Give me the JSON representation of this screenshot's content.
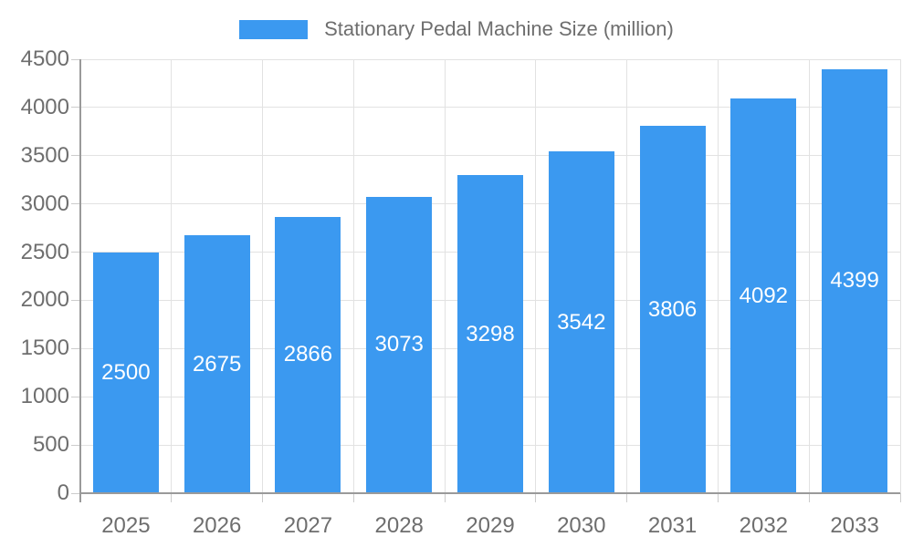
{
  "chart_data": {
    "type": "bar",
    "title": "Stationary Pedal Machine Size (million)",
    "legend": {
      "label": "Stationary Pedal Machine Size (million)",
      "position": "top"
    },
    "categories": [
      "2025",
      "2026",
      "2027",
      "2028",
      "2029",
      "2030",
      "2031",
      "2032",
      "2033"
    ],
    "series": [
      {
        "name": "Stationary Pedal Machine Size (million)",
        "values": [
          2500,
          2675,
          2866,
          3073,
          3298,
          3542,
          3806,
          4092,
          4399
        ]
      }
    ],
    "xlabel": "",
    "ylabel": "",
    "ylim": [
      0,
      4500
    ],
    "ytick_step": 500,
    "yticks": [
      0,
      500,
      1000,
      1500,
      2000,
      2500,
      3000,
      3500,
      4000,
      4500
    ],
    "grid": true,
    "bar_labels_inside": true
  },
  "colors": {
    "bar": "#3B99F0",
    "bar_value_text": "#ffffff",
    "axis_line": "#9a9a9a",
    "gridline": "#e2e2e2",
    "tick_mark": "#cccccc",
    "tick_text": "#6e6e6e",
    "legend_text": "#6e6e6e",
    "background": "#ffffff"
  }
}
